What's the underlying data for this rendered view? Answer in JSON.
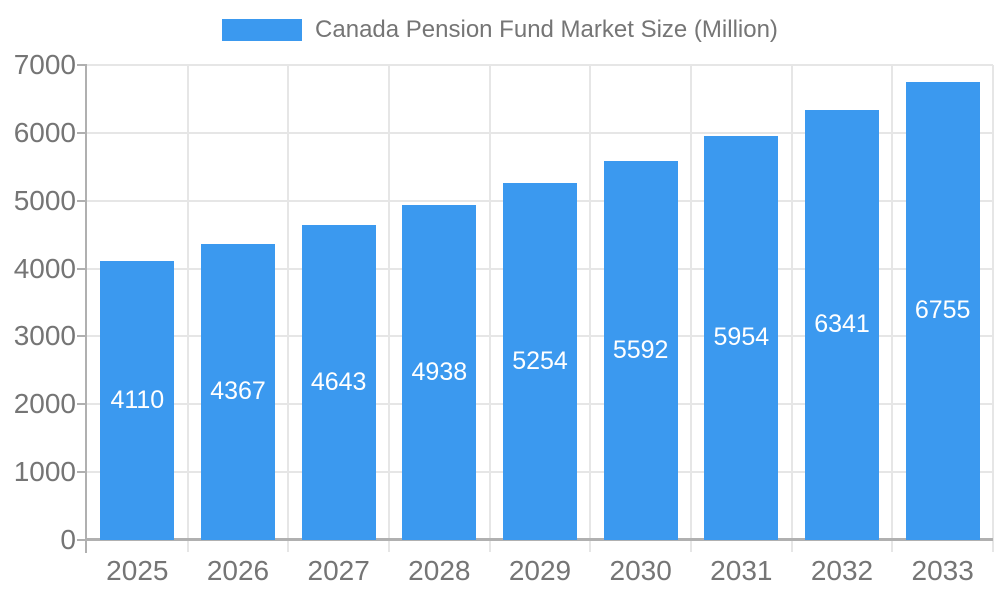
{
  "legend": {
    "position": "top",
    "label": "Canada Pension Fund Market Size (Million)"
  },
  "colors": {
    "bar": "#3b99ef",
    "grid": "#e6e6e6",
    "axis": "#b0b0b0",
    "tick_text": "#757575",
    "bar_label_text": "#ffffff",
    "background": "#ffffff"
  },
  "chart_data": {
    "type": "bar",
    "title": "Canada Pension Fund Market Size (Million)",
    "categories": [
      "2025",
      "2026",
      "2027",
      "2028",
      "2029",
      "2030",
      "2031",
      "2032",
      "2033"
    ],
    "values": [
      4110,
      4367,
      4643,
      4938,
      5254,
      5592,
      5954,
      6341,
      6755
    ],
    "value_labels": [
      "4110",
      "4367",
      "4643",
      "4938",
      "5254",
      "5592",
      "5954",
      "6341",
      "6755"
    ],
    "value_label_position": "center-inside-bar",
    "xlabel": "",
    "ylabel": "",
    "ylim": [
      0,
      7000
    ],
    "ytick_step": 1000,
    "y_ticks": [
      "0",
      "1000",
      "2000",
      "3000",
      "4000",
      "5000",
      "6000",
      "7000"
    ],
    "grid": true,
    "legend_position": "top"
  }
}
